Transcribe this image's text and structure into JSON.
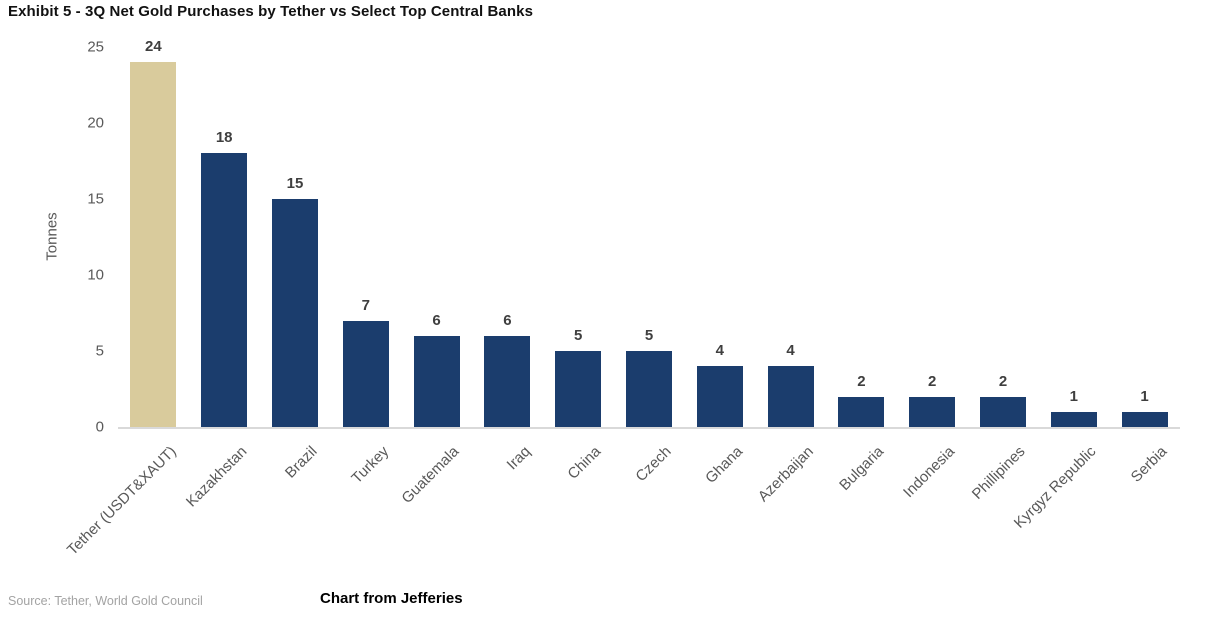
{
  "header": {
    "title": "Exhibit 5 - 3Q Net Gold Purchases by Tether vs Select Top Central Banks"
  },
  "chart_data": {
    "type": "bar",
    "title": "Exhibit 5 - 3Q Net Gold Purchases by Tether vs Select Top Central Banks",
    "xlabel": "",
    "ylabel": "Tonnes",
    "ylim": [
      0,
      25
    ],
    "yticks": [
      0,
      5,
      10,
      15,
      20,
      25
    ],
    "grid": false,
    "legend": "none",
    "categories": [
      "Tether (USDT&XAUT)",
      "Kazakhstan",
      "Brazil",
      "Turkey",
      "Guatemala",
      "Iraq",
      "China",
      "Czech",
      "Ghana",
      "Azerbaijan",
      "Bulgaria",
      "Indonesia",
      "Phillipines",
      "Kyrgyz Republic",
      "Serbia"
    ],
    "values": [
      24,
      18,
      15,
      7,
      6,
      6,
      5,
      5,
      4,
      4,
      2,
      2,
      2,
      1,
      1
    ],
    "data_labels": [
      "24",
      "18",
      "15",
      "7",
      "6",
      "6",
      "5",
      "5",
      "4",
      "4",
      "2",
      "2",
      "2",
      "1",
      "1"
    ],
    "highlight_index": 0,
    "highlight_category": "Tether (USDT&XAUT)",
    "bar_color_highlight": "#D9CB9C",
    "bar_color_default": "#1B3D6D"
  },
  "colors": {
    "axis_line": "#d9d9d9",
    "tick_label": "#595959",
    "value_label": "#3f3f3f",
    "source_text": "#a3a3a3"
  },
  "footer": {
    "source": "Source: Tether, World Gold Council",
    "credit": "Chart from Jefferies"
  }
}
